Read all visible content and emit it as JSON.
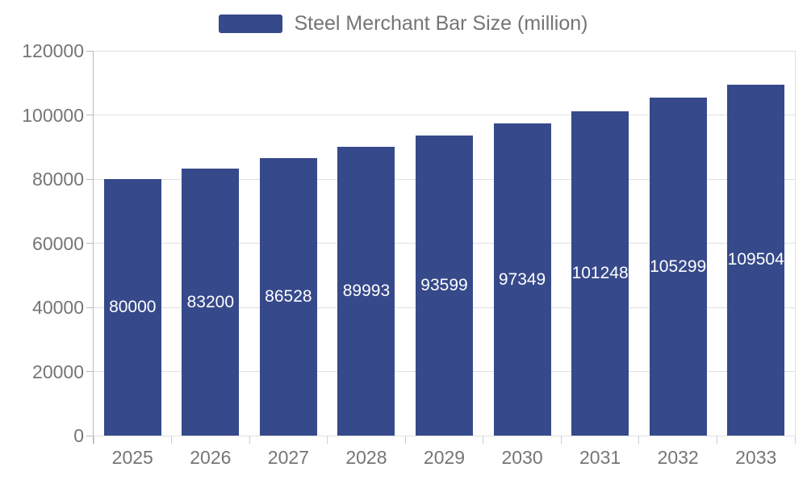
{
  "chart_data": {
    "type": "bar",
    "title": "Steel Merchant Bar Size (million)",
    "legend": {
      "label": "Steel Merchant Bar Size (million)",
      "position": "top-center"
    },
    "categories": [
      "2025",
      "2026",
      "2027",
      "2028",
      "2029",
      "2030",
      "2031",
      "2032",
      "2033"
    ],
    "series": [
      {
        "name": "Steel Merchant Bar Size (million)",
        "values": [
          80000,
          83200,
          86528,
          89993,
          93599,
          97349,
          101248,
          105299,
          109504
        ]
      }
    ],
    "value_labels": [
      "80000",
      "83200",
      "86528",
      "89993",
      "93599",
      "97349",
      "101248",
      "105299",
      "109504"
    ],
    "xlabel": "",
    "ylabel": "",
    "ylim": [
      0,
      120000
    ],
    "ytick_step": 20000,
    "y_tick_labels": [
      "0",
      "20000",
      "40000",
      "60000",
      "80000",
      "100000",
      "120000"
    ],
    "grid": true,
    "colors": {
      "bar": "#36498a",
      "bar_value_text": "#ffffff",
      "axis_text": "#757575",
      "grid_line": "#e0e0e0",
      "axis_line": "#b6bac2",
      "tick_line": "#c9cdd4",
      "background": "#ffffff"
    }
  }
}
